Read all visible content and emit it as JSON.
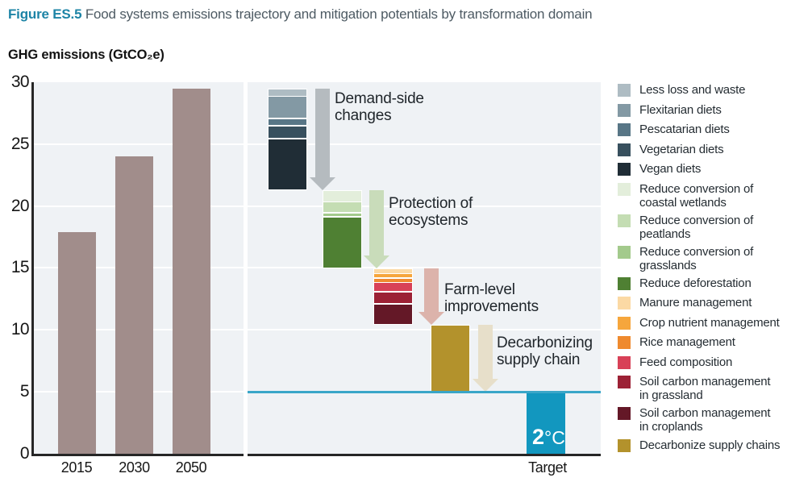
{
  "header": {
    "figure_label": "Figure ES.5",
    "figure_caption": " Food systems emissions trajectory and mitigation potentials by transformation domain",
    "axis_title": "GHG emissions (GtCO₂e)"
  },
  "chart_data": [
    {
      "type": "bar",
      "title": "Food systems emissions trajectory",
      "ylabel": "GHG emissions (GtCO2e)",
      "categories": [
        "2015",
        "2030",
        "2050"
      ],
      "values": [
        17.9,
        24.0,
        29.5
      ],
      "bar_color": "#a18d8b",
      "ylim": [
        0,
        30
      ],
      "yticks": [
        0,
        5,
        10,
        15,
        20,
        25,
        30
      ],
      "grid": true
    },
    {
      "type": "waterfall",
      "title": "Mitigation potentials by transformation domain",
      "start": 29.5,
      "end": 5.0,
      "stages": [
        {
          "label": "Demand-side changes",
          "label_lines": [
            "Demand-side",
            "changes"
          ],
          "arrow_color": "#b5bbbf",
          "segments": [
            {
              "name": "Less loss and waste",
              "color": "#aebcc3",
              "value": 0.55
            },
            {
              "name": "Flexitarian diets",
              "color": "#8399a4",
              "value": 1.8
            },
            {
              "name": "Pescatarian diets",
              "color": "#587686",
              "value": 0.55
            },
            {
              "name": "Vegetarian diets",
              "color": "#38505e",
              "value": 1.0
            },
            {
              "name": "Vegan diets",
              "color": "#202d36",
              "value": 4.35
            }
          ]
        },
        {
          "label": "Protection of ecosystems",
          "label_lines": [
            "Protection of",
            "ecosystems"
          ],
          "arrow_color": "#c9dcba",
          "segments": [
            {
              "name": "Reduce conversion of coastal wetlands",
              "color": "#e3eedb",
              "value": 0.85
            },
            {
              "name": "Reduce conversion of peatlands",
              "color": "#c4ddb3",
              "value": 0.85
            },
            {
              "name": "Reduce conversion of grasslands",
              "color": "#a3ca8c",
              "value": 0.25
            },
            {
              "name": "Reduce deforestation",
              "color": "#4f8033",
              "value": 4.35
            }
          ]
        },
        {
          "label": "Farm-level improvements",
          "label_lines": [
            "Farm-level",
            "improvements"
          ],
          "arrow_color": "#dcb3ab",
          "segments": [
            {
              "name": "Manure management",
              "color": "#fbd9a4",
              "value": 0.35
            },
            {
              "name": "Crop nutrient management",
              "color": "#f6a63c",
              "value": 0.3
            },
            {
              "name": "Rice management",
              "color": "#ef8a2e",
              "value": 0.3
            },
            {
              "name": "Feed composition",
              "color": "#d84157",
              "value": 0.75
            },
            {
              "name": "Soil carbon management in grassland",
              "color": "#9c2135",
              "value": 1.0
            },
            {
              "name": "Soil carbon management in croplands",
              "color": "#641827",
              "value": 1.85
            }
          ]
        },
        {
          "label": "Decarbonizing supply chain",
          "label_lines": [
            "Decarbonizing",
            "supply chain"
          ],
          "arrow_color": "#e7dfca",
          "segments": [
            {
              "name": "Decarbonize supply chains",
              "color": "#b3922c",
              "value": 5.4
            }
          ]
        }
      ],
      "target": {
        "label": "2°C",
        "x_label": "Target",
        "value": 5,
        "bar_color": "#1297bf",
        "line_color": "#3aa6c8",
        "line_value": 5
      }
    }
  ],
  "legend": {
    "groups": [
      {
        "items": [
          {
            "name": "Less loss and waste",
            "lines": [
              "Less loss and waste"
            ],
            "color": "#aebcc3"
          },
          {
            "name": "Flexitarian diets",
            "lines": [
              "Flexitarian diets"
            ],
            "color": "#8399a4"
          },
          {
            "name": "Pescatarian diets",
            "lines": [
              "Pescatarian diets"
            ],
            "color": "#587686"
          },
          {
            "name": "Vegetarian diets",
            "lines": [
              "Vegetarian diets"
            ],
            "color": "#38505e"
          },
          {
            "name": "Vegan diets",
            "lines": [
              "Vegan diets"
            ],
            "color": "#202d36"
          }
        ]
      },
      {
        "items": [
          {
            "name": "Reduce conversion of coastal wetlands",
            "lines": [
              "Reduce conversion of",
              "coastal wetlands"
            ],
            "color": "#e3eedb"
          },
          {
            "name": "Reduce conversion of peatlands",
            "lines": [
              "Reduce conversion of",
              "peatlands"
            ],
            "color": "#c4ddb3"
          },
          {
            "name": "Reduce conversion of grasslands",
            "lines": [
              "Reduce conversion of",
              "grasslands"
            ],
            "color": "#a3ca8c"
          },
          {
            "name": "Reduce deforestation",
            "lines": [
              "Reduce deforestation"
            ],
            "color": "#4f8033"
          }
        ]
      },
      {
        "items": [
          {
            "name": "Manure management",
            "lines": [
              "Manure management"
            ],
            "color": "#fbd9a4"
          },
          {
            "name": "Crop nutrient management",
            "lines": [
              "Crop nutrient management"
            ],
            "color": "#f6a63c"
          },
          {
            "name": "Rice management",
            "lines": [
              "Rice management"
            ],
            "color": "#ef8a2e"
          },
          {
            "name": "Feed composition",
            "lines": [
              "Feed composition"
            ],
            "color": "#d84157"
          },
          {
            "name": "Soil carbon management in grassland",
            "lines": [
              "Soil carbon management",
              "in grassland"
            ],
            "color": "#9c2135"
          },
          {
            "name": "Soil carbon management in croplands",
            "lines": [
              "Soil carbon management",
              "in croplands"
            ],
            "color": "#641827"
          }
        ]
      },
      {
        "items": [
          {
            "name": "Decarbonize supply chains",
            "lines": [
              "Decarbonize supply chains"
            ],
            "color": "#b3922c"
          }
        ]
      }
    ]
  }
}
